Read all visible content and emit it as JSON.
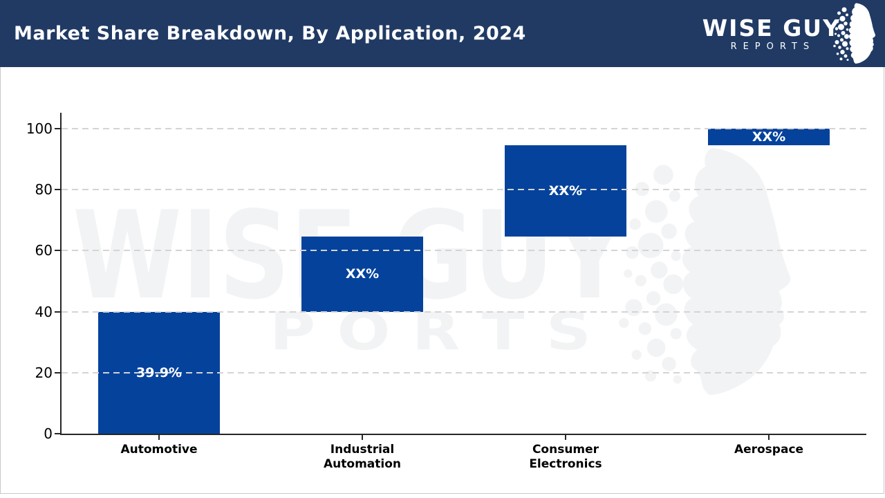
{
  "header": {
    "title": "Market Share Breakdown, By Application, 2024",
    "logo": {
      "wordmark": "WISE GUY",
      "subtext": "REPORTS"
    }
  },
  "watermark": {
    "line1": "WISE GUY",
    "line2": "P O R T S"
  },
  "chart_data": {
    "type": "bar",
    "subtype": "waterfall",
    "title": "Market Share Breakdown, By Application, 2024",
    "categories": [
      "Automotive",
      "Industrial\nAutomation",
      "Consumer\nElectronics",
      "Aerospace"
    ],
    "segments": [
      {
        "category": "Automotive",
        "start": 0,
        "end": 39.9,
        "label": "39.9%"
      },
      {
        "category": "Industrial Automation",
        "start": 39.9,
        "end": 64.7,
        "label": "XX%"
      },
      {
        "category": "Consumer Electronics",
        "start": 64.7,
        "end": 94.6,
        "label": "XX%"
      },
      {
        "category": "Aerospace",
        "start": 94.6,
        "end": 100,
        "label": "XX%"
      }
    ],
    "y_ticks": [
      0,
      20,
      40,
      60,
      80,
      100
    ],
    "ylim": [
      0,
      105
    ],
    "xlabel": "",
    "ylabel": "",
    "grid": "horizontal-dashed",
    "legend": "none",
    "colors": {
      "bar": "#04429c",
      "header_background": "#203a64",
      "gridline": "#d4d4d4",
      "axis": "#262626",
      "bar_label_text": "#ffffff",
      "watermark": "#f2f3f5"
    }
  }
}
